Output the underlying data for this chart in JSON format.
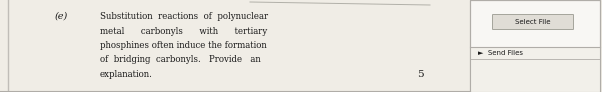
{
  "bg_color": "#f0ede6",
  "text_color": "#1a1a1a",
  "label": "(e)",
  "main_text_lines": [
    "Substitution  reactions  of  polynuclear",
    "metal      carbonyls      with      tertiary",
    "phosphines often induce the formation",
    "of  bridging  carbonyls.   Provide   an",
    "explanation."
  ],
  "score": "5",
  "button1_text": "Select File",
  "button2_text": "►  Send Files",
  "right_panel_bg": "#e8e4dc",
  "right_panel_top_bg": "#ffffff",
  "button_bg": "#e0ddd6",
  "button_border": "#999990",
  "divider_color": "#b0ada8",
  "left_border_color": "#c0bdb8",
  "font_size": 6.2,
  "label_font_size": 7.0,
  "score_font_size": 7.5
}
